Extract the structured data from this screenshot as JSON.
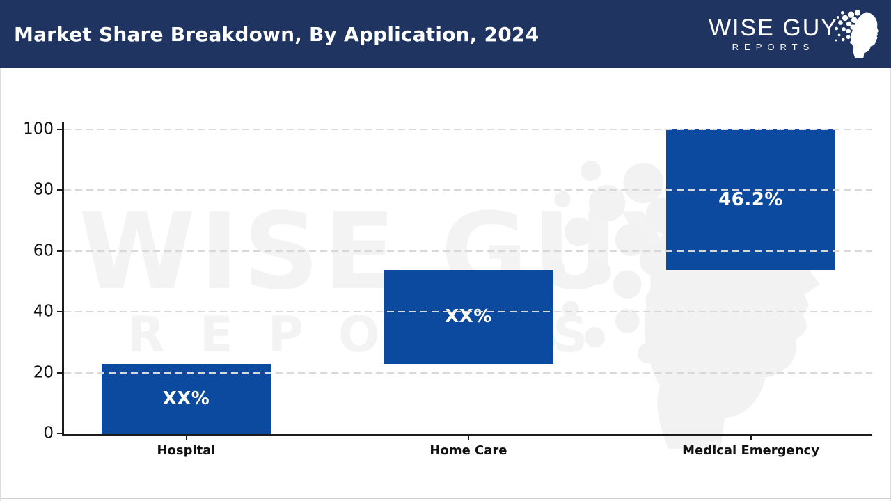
{
  "header": {
    "logo": {
      "wordmark": "WISE GUY",
      "subtext": "REPORTS"
    }
  },
  "watermark": {
    "line1": "WISE GUY",
    "line2": "REPORTS"
  },
  "chart_data": {
    "type": "bar",
    "subtype": "stacked-waterfall-segments",
    "title": "Market Share Breakdown, By Application, 2024",
    "categories": [
      "Hospital",
      "Home Care",
      "Medical Emergency"
    ],
    "bars": [
      {
        "category": "Hospital",
        "start": 0,
        "end": 23,
        "label": "XX%"
      },
      {
        "category": "Home Care",
        "start": 23,
        "end": 53.8,
        "label": "XX%"
      },
      {
        "category": "Medical Emergency",
        "start": 53.8,
        "end": 100,
        "label": "46.2%"
      }
    ],
    "yticks": [
      0,
      20,
      40,
      60,
      80,
      100
    ],
    "ylim": [
      0,
      100
    ],
    "xlabel": "",
    "ylabel": "",
    "legend": "none",
    "grid": "horizontal-dashed",
    "colors": {
      "bar": "#0b4a9f",
      "header_background": "#1f3460",
      "gridline": "#d8d8d8",
      "axis": "#1c1c1c",
      "bar_label_text": "#ffffff",
      "watermark": "#f3f3f3"
    }
  }
}
